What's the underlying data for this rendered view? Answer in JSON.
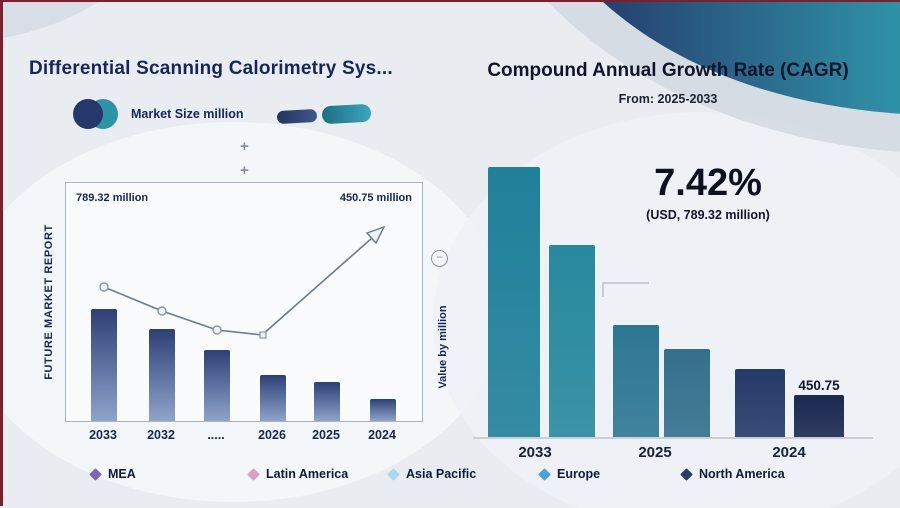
{
  "header": {
    "left_title": "Differential Scanning Calorimetry Sys...",
    "market_size_label": "Market Size million"
  },
  "left_chart": {
    "side_label": "FUTURE MARKET REPORT",
    "start_label": "789.32 million",
    "end_label": "450.75 million"
  },
  "right": {
    "title": "Compound Annual Growth Rate (CAGR)",
    "subtitle": "From: 2025-2033",
    "cagr": "7.42%",
    "cagr_note": "(USD, 789.32 million)",
    "axis_label": "Value by million",
    "annotation": "450.75"
  },
  "chart_data": [
    {
      "type": "bar",
      "title": "Market Size million",
      "categories": [
        "2033",
        "2032",
        ".....",
        "2026",
        "2025",
        "2024"
      ],
      "values": [
        789.32,
        648,
        500,
        324,
        275,
        155
      ],
      "annotations": [
        {
          "text": "789.32 million",
          "position": "top-left"
        },
        {
          "text": "450.75 million",
          "position": "top-right"
        }
      ],
      "ylabel": "FUTURE MARKET REPORT",
      "ylim": [
        0,
        850
      ],
      "trend": "markers descending over first bars, outlined arrow rising to top-right"
    },
    {
      "type": "bar",
      "title": "Compound Annual Growth Rate (CAGR)",
      "subtitle": "From: 2025-2033",
      "cagr_percent": 7.42,
      "cagr_usd_million": 789.32,
      "categories": [
        "2033",
        "2025",
        "2024"
      ],
      "groups": [
        {
          "category": "2033",
          "values": [
            789.32,
            561
          ],
          "colors": [
            "#20809a",
            "#27899e"
          ]
        },
        {
          "category": "2025",
          "values": [
            327,
            257
          ],
          "colors": [
            "#2d7793",
            "#336f8c"
          ]
        },
        {
          "category": "2024",
          "values": [
            199,
            123
          ],
          "colors": [
            "#263a68",
            "#1b2850"
          ]
        }
      ],
      "annotation": {
        "text": "450.75",
        "near": "2024"
      },
      "ylabel": "Value by million",
      "ylim": [
        0,
        850
      ]
    }
  ],
  "legend": {
    "items": [
      {
        "label": "MEA",
        "color": "#7b68b5"
      },
      {
        "label": "Latin America",
        "color": "#d9a0c4"
      },
      {
        "label": "Asia Pacific",
        "color": "#a9d9ea"
      },
      {
        "label": "Europe",
        "color": "#4aa3d8"
      },
      {
        "label": "North America",
        "color": "#2b3a66"
      }
    ]
  },
  "colors": {
    "background": "#e9edf2",
    "frame_red": "#7e1f2f",
    "navy": "#16265a",
    "teal": "#2f93a8",
    "left_bar_top": "#2c4076",
    "left_bar_bottom": "#8fa3cc"
  }
}
